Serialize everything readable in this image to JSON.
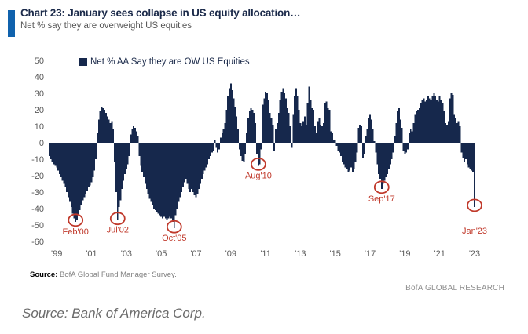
{
  "header": {
    "title": "Chart 23: January sees collapse in US equity allocation…",
    "subtitle": "Net % say they are overweight US equities"
  },
  "legend": {
    "label": "Net % AA Say they are OW US Equities"
  },
  "footer": {
    "source_label": "Source:",
    "source_text": " BofA Global Fund Manager Survey.",
    "brand": "BofA GLOBAL RESEARCH"
  },
  "caption": "Source: Bank of America Corp.",
  "colors": {
    "bar": "#16284c",
    "accent_bar": "#1062ad",
    "title": "#1b2a4a",
    "gray_text": "#595959",
    "zero_line": "#808080",
    "annotation_red": "#c0392b"
  },
  "chart_data": {
    "type": "bar",
    "title": "Net % AA Say they are OW US Equities",
    "xlabel": "",
    "ylabel": "Net % say they are overweight US equities",
    "start_month": "1998-08",
    "end_month": "2023-01",
    "ylim": [
      -60,
      50
    ],
    "yticks": [
      50,
      40,
      30,
      20,
      10,
      0,
      -10,
      -20,
      -30,
      -40,
      -50,
      -60
    ],
    "grid": false,
    "legend_position": "top-left",
    "x_tick_labels": [
      "'99",
      "'01",
      "'03",
      "'05",
      "'07",
      "'09",
      "'11",
      "'13",
      "'15",
      "'17",
      "'19",
      "'21",
      "'23"
    ],
    "x_tick_indices": [
      5,
      29,
      53,
      77,
      101,
      125,
      149,
      173,
      197,
      221,
      245,
      269,
      293
    ],
    "values": [
      -8,
      -10,
      -12,
      -13,
      -14,
      -15,
      -17,
      -19,
      -21,
      -23,
      -25,
      -27,
      -30,
      -33,
      -36,
      -39,
      -43,
      -46,
      -48,
      -47,
      -44,
      -41,
      -38,
      -35,
      -33,
      -31,
      -29,
      -27,
      -26,
      -24,
      -21,
      -17,
      -10,
      6,
      14,
      19,
      22,
      21,
      20,
      18,
      16,
      14,
      12,
      13,
      8,
      -12,
      -30,
      -47,
      -39,
      -35,
      -28,
      -23,
      -19,
      -16,
      -13,
      -8,
      5,
      8,
      10,
      9,
      7,
      4,
      -8,
      -14,
      -18,
      -21,
      -25,
      -28,
      -31,
      -34,
      -36,
      -38,
      -40,
      -41,
      -42,
      -43,
      -44,
      -45,
      -46,
      -45,
      -46,
      -47,
      -46,
      -45,
      -46,
      -48,
      -52,
      -44,
      -40,
      -36,
      -33,
      -30,
      -27,
      -24,
      -22,
      -25,
      -28,
      -30,
      -28,
      -30,
      -32,
      -33,
      -31,
      -28,
      -25,
      -22,
      -19,
      -17,
      -15,
      -13,
      -10,
      -8,
      -6,
      -5,
      2,
      -3,
      -6,
      -4,
      3,
      6,
      8,
      12,
      20,
      28,
      33,
      36,
      32,
      27,
      22,
      16,
      8,
      -4,
      -8,
      -11,
      -12,
      -7,
      6,
      15,
      19,
      21,
      20,
      18,
      12,
      -7,
      -14,
      -13,
      -4,
      23,
      27,
      31,
      30,
      26,
      18,
      15,
      11,
      -5,
      8,
      12,
      18,
      26,
      31,
      33,
      30,
      27,
      21,
      18,
      10,
      -3,
      17,
      28,
      33,
      28,
      20,
      12,
      10,
      13,
      16,
      11,
      24,
      34,
      26,
      21,
      20,
      10,
      6,
      13,
      15,
      11,
      10,
      12,
      24,
      25,
      21,
      20,
      7,
      6,
      2,
      2,
      -2,
      -5,
      -6,
      -8,
      -12,
      -13,
      -15,
      -16,
      -18,
      -17,
      -15,
      -18,
      -16,
      -12,
      -6,
      9,
      11,
      10,
      -9,
      -7,
      4,
      8,
      15,
      17,
      14,
      8,
      1,
      -6,
      -13,
      -19,
      -22,
      -28,
      -25,
      -23,
      -21,
      -19,
      -16,
      -13,
      -10,
      -6,
      4,
      12,
      19,
      21,
      14,
      9,
      -5,
      -7,
      -6,
      -4,
      6,
      8,
      7,
      12,
      17,
      19,
      20,
      21,
      24,
      26,
      27,
      25,
      26,
      28,
      27,
      26,
      28,
      30,
      28,
      26,
      25,
      28,
      26,
      24,
      19,
      12,
      11,
      13,
      27,
      30,
      29,
      17,
      15,
      12,
      13,
      10,
      -6,
      -9,
      -12,
      -10,
      -13,
      -15,
      -16,
      -17,
      -18,
      -39
    ],
    "annotations": [
      {
        "label": "Feb'00",
        "index": 18,
        "value": -48,
        "label_dy": 18
      },
      {
        "label": "Jul'02",
        "index": 47,
        "value": -47,
        "label_dy": 18
      },
      {
        "label": "Oct'05",
        "index": 86,
        "value": -52,
        "label_dy": 18
      },
      {
        "label": "Aug'10",
        "index": 144,
        "value": -14,
        "label_dy": 18
      },
      {
        "label": "Sep'17",
        "index": 229,
        "value": -28,
        "label_dy": 18
      },
      {
        "label": "Jan'23",
        "index": 293,
        "value": -39,
        "label_dy": 36
      }
    ]
  }
}
